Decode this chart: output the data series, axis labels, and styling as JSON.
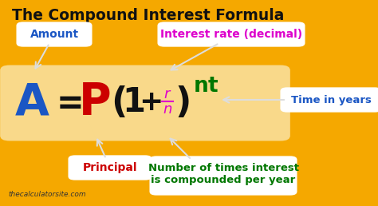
{
  "title": "The Compound Interest Formula",
  "background_color": "#F5A800",
  "formula_box_color": "#F9D98A",
  "title_color": "#111111",
  "A_color": "#1A56C4",
  "P_color": "#CC0000",
  "paren_color": "#111111",
  "r_color": "#DD00CC",
  "n_color": "#DD00CC",
  "nt_color": "#007700",
  "amount_label_color": "#1A56C4",
  "interest_label_color": "#DD00CC",
  "principal_label_color": "#CC0000",
  "times_label_color": "#007700",
  "time_label_color": "#1A56C4",
  "arrow_color": "#DDDDDD",
  "watermark": "thecalculatorsite.com",
  "amount_label": "Amount",
  "interest_label": "Interest rate (decimal)",
  "principal_label": "Principal",
  "times_label1": "Number of times interest",
  "times_label2": "is compounded per year",
  "time_label": "Time in years",
  "fig_w": 4.74,
  "fig_h": 2.58,
  "dpi": 100
}
